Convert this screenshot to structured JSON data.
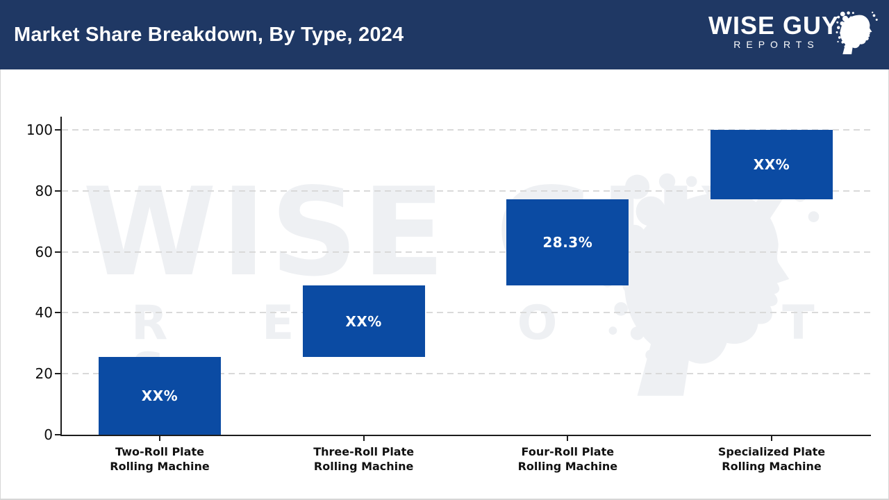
{
  "header": {
    "title": "Market Share Breakdown, By Type, 2024",
    "logo": {
      "brand": "WISE GUY",
      "sub": "REPORTS"
    }
  },
  "watermark": {
    "brand": "WISE GUY",
    "sub": "R E P O R T S"
  },
  "colors": {
    "header_navy": "#1f3864",
    "bar_blue": "#0b4ba3",
    "grid_gray": "#d9d9d9",
    "axis_black": "#1c1c1c",
    "watermark_gray": "#eef0f3"
  },
  "chart_data": {
    "type": "bar",
    "variant": "floating stacked-breakdown segments (waterfall style)",
    "title": "Market Share Breakdown, By Type, 2024",
    "categories": [
      "Two-Roll Plate\nRolling Machine",
      "Three-Roll Plate\nRolling Machine",
      "Four-Roll Plate\nRolling Machine",
      "Specialized Plate\nRolling Machine"
    ],
    "bars": [
      {
        "category": "Two-Roll Plate Rolling Machine",
        "start": 0,
        "end": 25.5,
        "share_pct": 25.5,
        "label": "XX%"
      },
      {
        "category": "Three-Roll Plate Rolling Machine",
        "start": 25.5,
        "end": 48.9,
        "share_pct": 23.4,
        "label": "XX%"
      },
      {
        "category": "Four-Roll Plate Rolling Machine",
        "start": 48.9,
        "end": 77.2,
        "share_pct": 28.3,
        "label": "28.3%"
      },
      {
        "category": "Specialized Plate Rolling Machine",
        "start": 77.2,
        "end": 100,
        "share_pct": 22.8,
        "label": "XX%"
      }
    ],
    "xlabel": "",
    "ylabel": "",
    "ylim": [
      0,
      104
    ],
    "yticks": [
      0,
      20,
      40,
      60,
      80,
      100
    ],
    "grid": "horizontal dashed",
    "legend": null,
    "bar_color": "#0b4ba3",
    "bar_label_color": "#ffffff"
  }
}
